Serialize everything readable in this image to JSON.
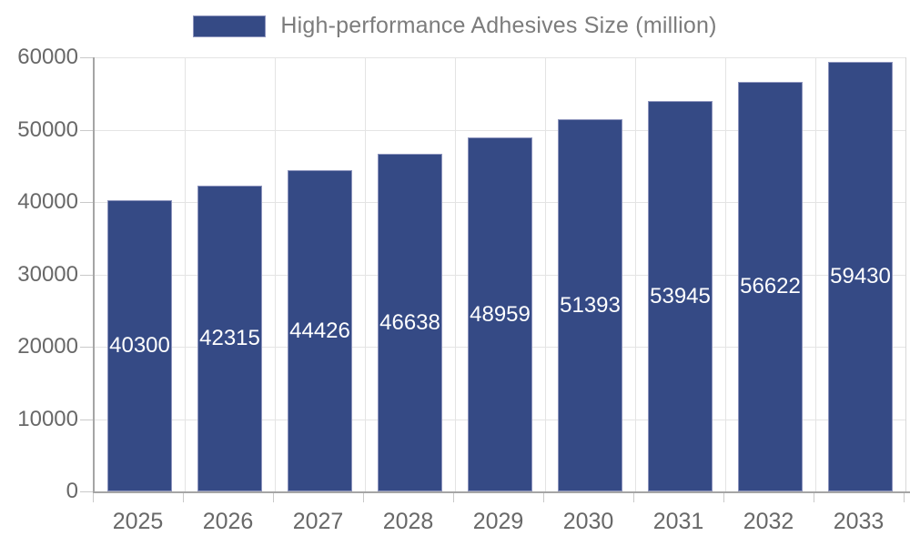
{
  "chart_data": {
    "type": "bar",
    "title": "",
    "categories": [
      "2025",
      "2026",
      "2027",
      "2028",
      "2029",
      "2030",
      "2031",
      "2032",
      "2033"
    ],
    "series": [
      {
        "name": "High-performance Adhesives Size (million)",
        "values": [
          40300,
          42315,
          44426,
          46638,
          48959,
          51393,
          53945,
          56622,
          59430
        ]
      }
    ],
    "ylim": [
      0,
      60000
    ],
    "yticks": [
      0,
      10000,
      20000,
      30000,
      40000,
      50000,
      60000
    ],
    "grid": true,
    "legend_position": "top-center",
    "value_label_position": "inside-middle",
    "colors": {
      "bar_fill": "#354a85",
      "bar_border": "#8d94bd",
      "value_label": "#ffffff",
      "axis_text": "#686868",
      "legend_text": "#7c7c7c",
      "gridline": "#e4e4e4",
      "axis_line": "#a5a5a5"
    }
  }
}
